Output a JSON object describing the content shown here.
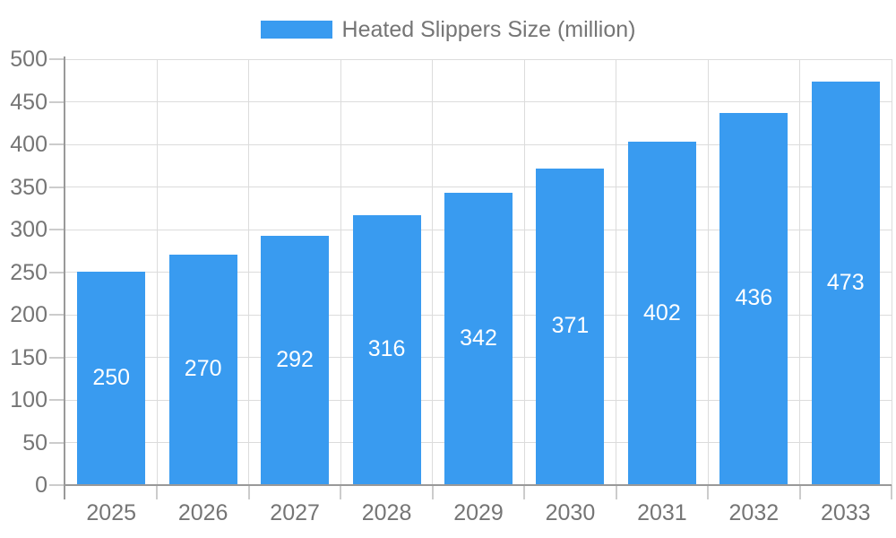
{
  "legend": {
    "label": "Heated Slippers Size (million)"
  },
  "colors": {
    "bar": "#399BF0",
    "grid": "#DCDCDC",
    "axis": "#999999",
    "tick": "#CCCCCC",
    "axis_label": "#757575",
    "bar_label": "#FFFFFF",
    "background": "#FFFFFF"
  },
  "chart_data": {
    "type": "bar",
    "title": "",
    "legend": "Heated Slippers Size (million)",
    "legend_position": "top",
    "categories": [
      "2025",
      "2026",
      "2027",
      "2028",
      "2029",
      "2030",
      "2031",
      "2032",
      "2033"
    ],
    "values": [
      250,
      270,
      292,
      316,
      342,
      371,
      402,
      436,
      473
    ],
    "series": [
      {
        "name": "Heated Slippers Size (million)",
        "values": [
          250,
          270,
          292,
          316,
          342,
          371,
          402,
          436,
          473
        ]
      }
    ],
    "xlabel": "",
    "ylabel": "",
    "ylim": [
      0,
      500
    ],
    "ytick_step": 50,
    "yticks": [
      0,
      50,
      100,
      150,
      200,
      250,
      300,
      350,
      400,
      450,
      500
    ],
    "grid": true,
    "value_labels": "inside-center"
  }
}
